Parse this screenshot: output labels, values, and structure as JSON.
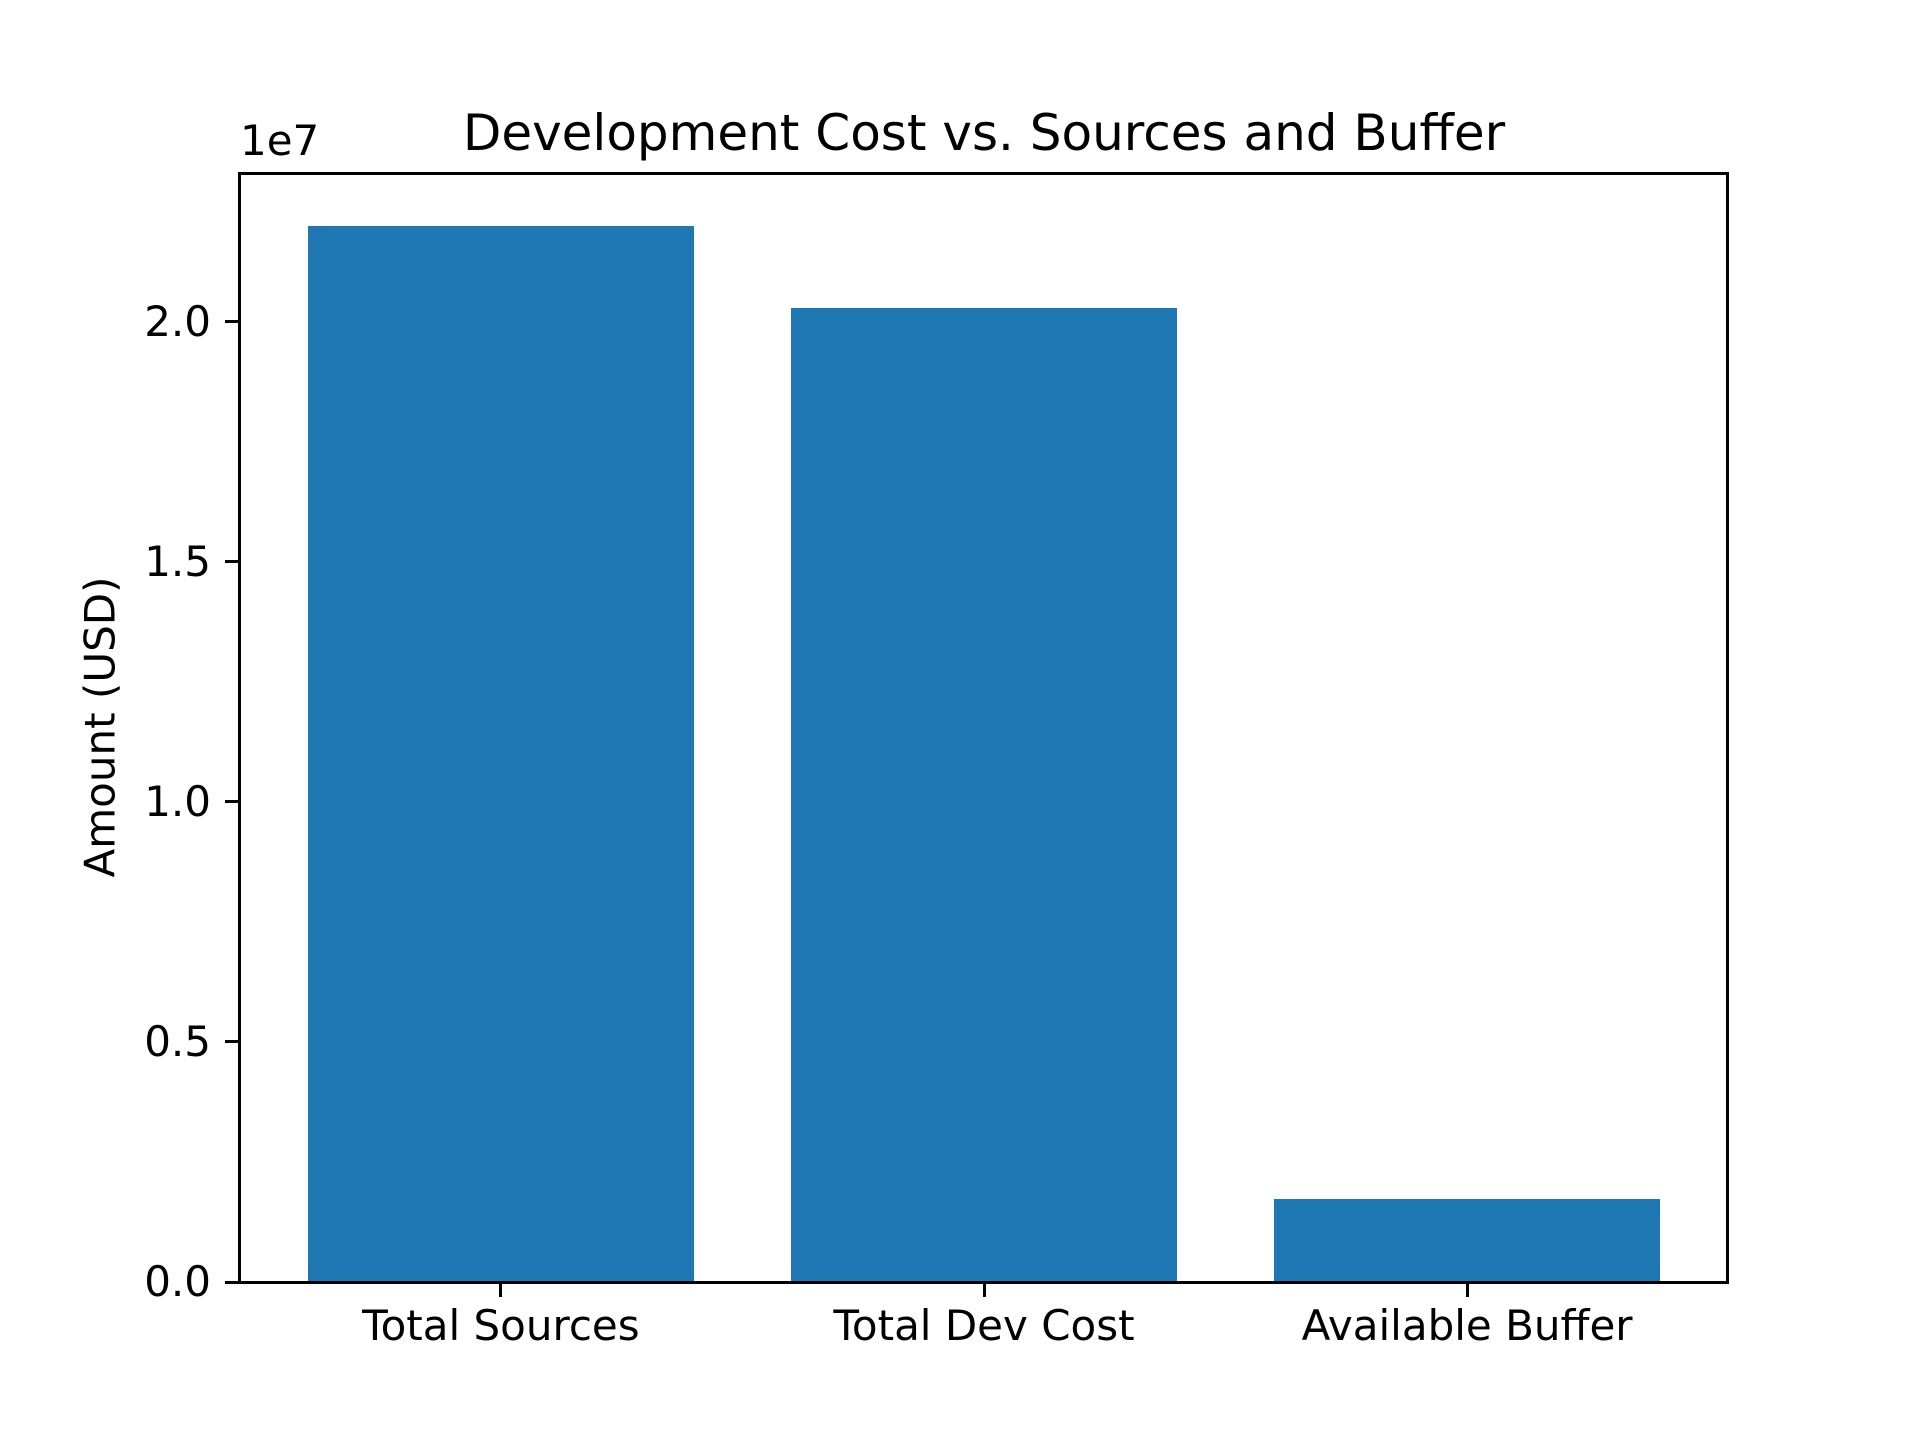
{
  "chart_data": {
    "type": "bar",
    "title": "Development Cost vs. Sources and Buffer",
    "ylabel": "Amount (USD)",
    "xlabel": "",
    "y_axis_offset_text": "1e7",
    "categories": [
      "Total Sources",
      "Total Dev Cost",
      "Available Buffer"
    ],
    "values": [
      22000000,
      20280000,
      1720000
    ],
    "bar_color": "#1f77b4",
    "bar_width_fraction": 0.8,
    "xlim": [
      -0.54,
      2.54
    ],
    "ylim": [
      0,
      23100000
    ],
    "ytick_values": [
      0,
      5000000,
      10000000,
      15000000,
      20000000
    ],
    "ytick_labels": [
      "0.0",
      "0.5",
      "1.0",
      "1.5",
      "2.0"
    ],
    "grid": false,
    "legend": "none"
  }
}
